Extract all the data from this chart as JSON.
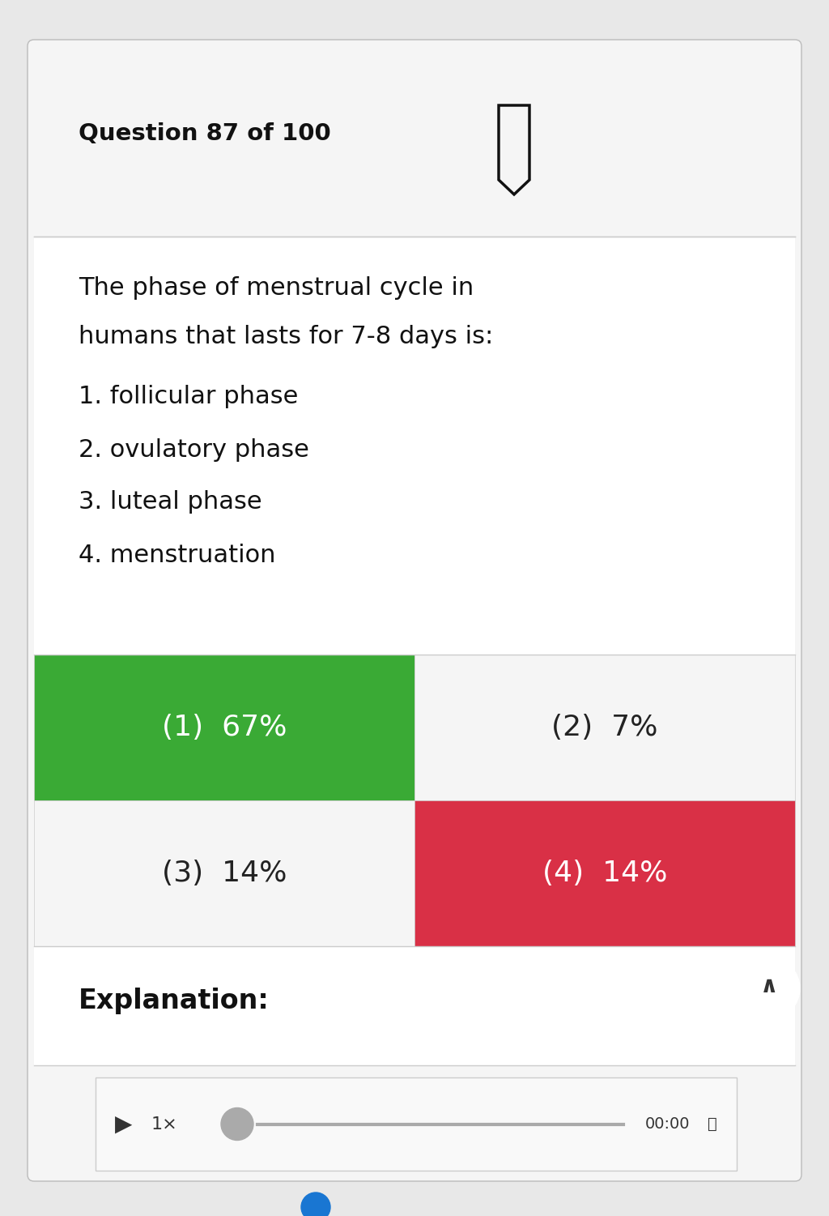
{
  "question_header": "Question 87 of 100",
  "question_text_lines": [
    "The phase of menstrual cycle in",
    "humans that lasts for 7-8 days is:"
  ],
  "options": [
    "1. follicular phase",
    "2. ovulatory phase",
    "3. luteal phase",
    "4. menstruation"
  ],
  "results": [
    {
      "label": "(1)  67%",
      "color": "#3aaa35",
      "text_color": "#ffffff",
      "col": 0,
      "row": 1
    },
    {
      "label": "(2)  7%",
      "color": "#f5f5f5",
      "text_color": "#222222",
      "col": 1,
      "row": 1
    },
    {
      "label": "(3)  14%",
      "color": "#f5f5f5",
      "text_color": "#222222",
      "col": 0,
      "row": 0
    },
    {
      "label": "(4)  14%",
      "color": "#d93046",
      "text_color": "#ffffff",
      "col": 1,
      "row": 0
    }
  ],
  "outer_bg": "#e8e8e8",
  "card_bg": "#f5f5f5",
  "white_bg": "#ffffff",
  "separator_color": "#cccccc",
  "explanation_label": "Explanation:",
  "bookmark_color": "#111111",
  "media_bar_color": "#f5f5f5",
  "media_inner_bg": "#ffffff"
}
